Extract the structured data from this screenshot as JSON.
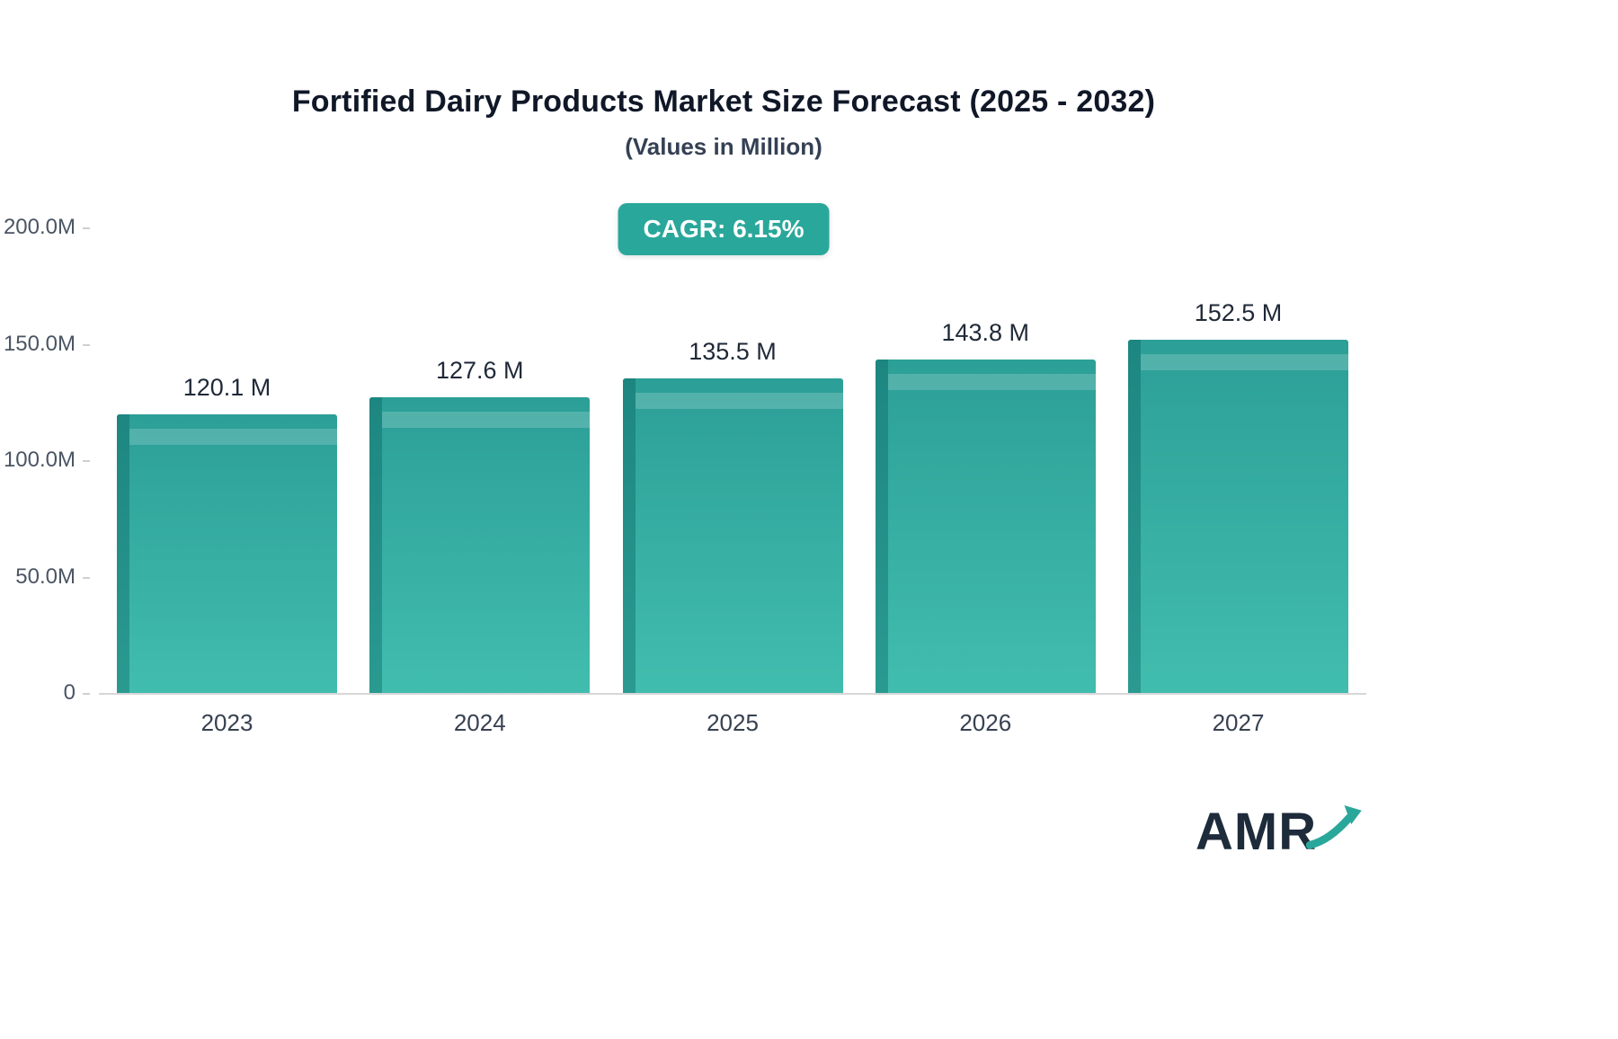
{
  "chart_data": {
    "type": "bar",
    "title": "Fortified Dairy Products Market Size Forecast (2025 - 2032)",
    "subtitle": "(Values in Million)",
    "badge": "CAGR: 6.15%",
    "categories": [
      "2023",
      "2024",
      "2025",
      "2026",
      "2027"
    ],
    "values": [
      120.1,
      127.6,
      135.5,
      143.8,
      152.5
    ],
    "value_labels": [
      "120.1 M",
      "127.6 M",
      "135.5 M",
      "143.8 M",
      "152.5 M"
    ],
    "unit": "Million",
    "xlabel": "",
    "ylabel": "",
    "ylim": [
      0,
      200
    ],
    "yticks": [
      "200.0M",
      "150.0M",
      "100.0M",
      "50.0M",
      "0"
    ],
    "grid": false,
    "legend": false
  },
  "logo": {
    "text": "AMR",
    "icon": "trend-up-arrow-icon"
  },
  "colors": {
    "accent": "#2aa79b",
    "bar-top": "#2c9f97",
    "bar-bottom": "#41bdae",
    "bar-edge": "#1d8680",
    "bar-highlight": "rgba(255,255,255,0.18)",
    "title-color": "#101828",
    "subtitle-color": "#344054",
    "axis-color": "#4b5563",
    "baseline-color": "#d7d7d7",
    "logo-color": "#1d2b3a"
  }
}
